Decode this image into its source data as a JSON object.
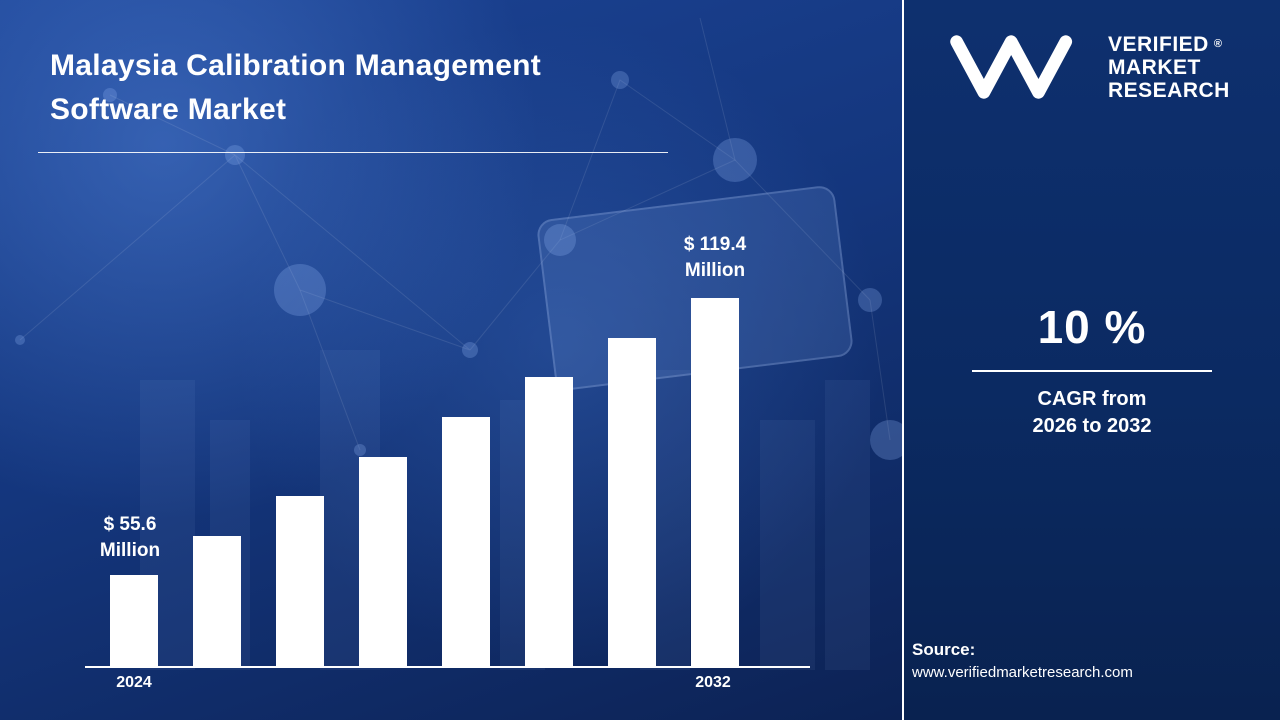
{
  "title": "Malaysia Calibration Management Software Market",
  "chart_data": {
    "type": "bar",
    "title": "Malaysia Calibration Management Software Market",
    "unit": "USD Million",
    "values": [
      55.6,
      64.7,
      73.8,
      82.9,
      92.0,
      101.2,
      110.3,
      119.4
    ],
    "first_bar": {
      "year": "2024",
      "amount": "$ 55.6",
      "unit": "Million",
      "value": 55.6
    },
    "last_bar": {
      "year": "2032",
      "amount": "$ 119.4",
      "unit": "Million",
      "value": 119.4
    },
    "visible_tick_labels": [
      "2024",
      "2032"
    ],
    "bar_color": "#ffffff",
    "ylim": [
      0,
      130
    ],
    "grid": false,
    "legend": "none"
  },
  "brand": {
    "monogram": "VM",
    "logo_lines": [
      "VERIFIED",
      "MARKET",
      "RESEARCH"
    ],
    "registered_mark": "®"
  },
  "cagr": {
    "value": "10 %",
    "percent": 10,
    "caption_line1": "CAGR from",
    "caption_line2": "2026 to 2032"
  },
  "source": {
    "label": "Source:",
    "url": "www.verifiedmarketresearch.com"
  },
  "colors": {
    "background_left_top": "#1c4496",
    "background_left_bottom": "#0c2254",
    "background_right": "#0b2a62",
    "bar": "#ffffff",
    "text": "#ffffff"
  }
}
